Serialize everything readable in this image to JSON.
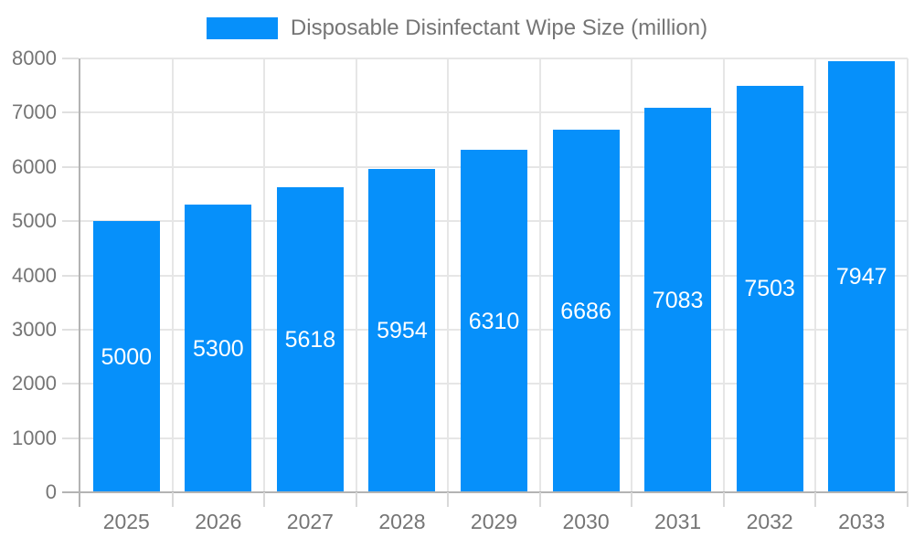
{
  "chart_data": {
    "type": "bar",
    "title": "Disposable Disinfectant Wipe Size (million)",
    "categories": [
      "2025",
      "2026",
      "2027",
      "2028",
      "2029",
      "2030",
      "2031",
      "2032",
      "2033"
    ],
    "values": [
      5000,
      5300,
      5618,
      5954,
      6310,
      6686,
      7083,
      7503,
      7947
    ],
    "yticks": [
      0,
      1000,
      2000,
      3000,
      4000,
      5000,
      6000,
      7000,
      8000
    ],
    "ylim": [
      0,
      8000
    ],
    "xlabel": "",
    "ylabel": "",
    "grid": true,
    "legend_position": "top",
    "value_label_position": "inside-center",
    "colors": {
      "bar": "#0690fa",
      "axis_text": "#757575",
      "grid_line": "#e6e6e6",
      "axis_line": "#b3b3b3",
      "tick_line": "#d9d9d9",
      "value_text": "#ffffff",
      "background": "#ffffff"
    }
  }
}
